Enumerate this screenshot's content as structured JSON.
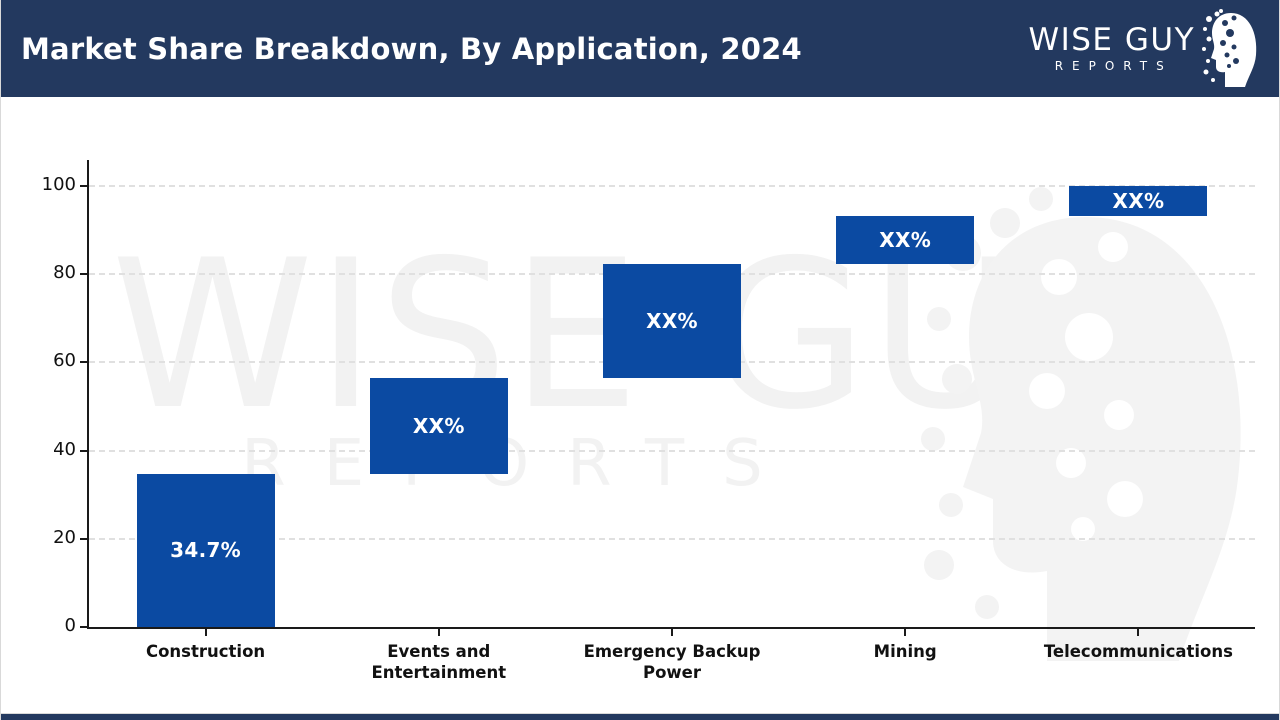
{
  "header": {
    "title": "Market Share Breakdown, By Application, 2024",
    "logo": {
      "line1": "WISE GUY",
      "line2": "REPORTS"
    }
  },
  "watermark": {
    "line1": "WISE GUY",
    "line2": "REPORTS"
  },
  "colors": {
    "header_bg": "#23395f",
    "bar_blue": "#0b4aa2",
    "grid": "#e0e0e0",
    "axis": "#1a1a1a"
  },
  "chart_data": {
    "type": "bar",
    "subtype": "waterfall",
    "title": "Market Share Breakdown, By Application, 2024",
    "xlabel": "",
    "ylabel": "",
    "ylim": [
      0,
      106
    ],
    "yticks": [
      0,
      20,
      40,
      60,
      80,
      100
    ],
    "grid": "horizontal-dashed",
    "legend": "none",
    "categories": [
      "Construction",
      "Events and Entertainment",
      "Emergency Backup Power",
      "Mining",
      "Telecommunications"
    ],
    "segments": [
      {
        "category": "Construction",
        "value_label": "34.7%",
        "start": 0,
        "end": 34.7
      },
      {
        "category": "Events and Entertainment",
        "value_label": "XX%",
        "start": 34.7,
        "end": 56.5
      },
      {
        "category": "Emergency Backup Power",
        "value_label": "XX%",
        "start": 56.5,
        "end": 82.4
      },
      {
        "category": "Mining",
        "value_label": "XX%",
        "start": 82.4,
        "end": 93.2
      },
      {
        "category": "Telecommunications",
        "value_label": "XX%",
        "start": 93.2,
        "end": 100
      }
    ]
  }
}
